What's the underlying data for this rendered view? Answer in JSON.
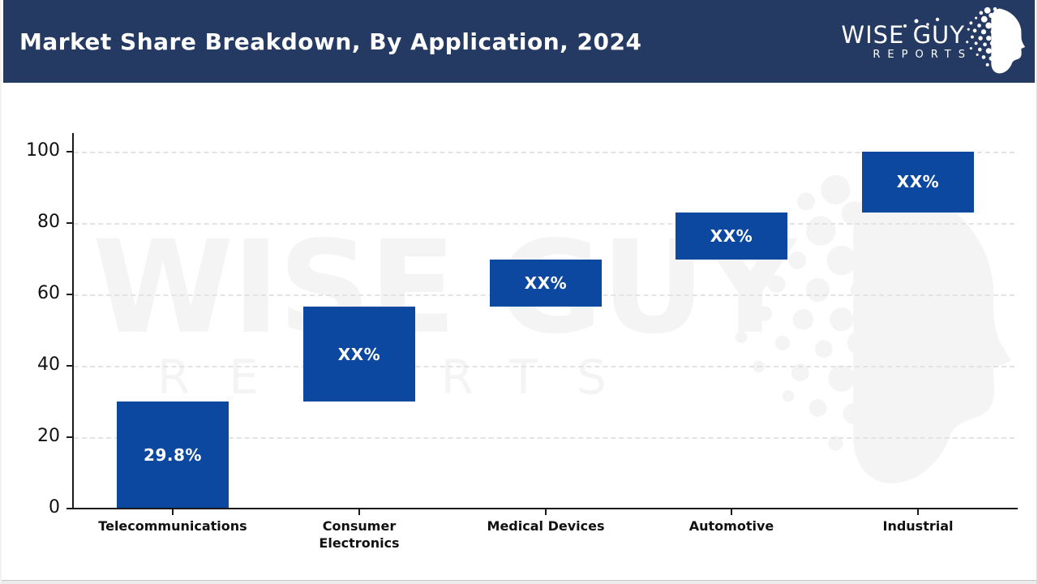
{
  "header": {
    "title": "Market Share Breakdown, By Application, 2024",
    "logo": {
      "wordmark": "WISE GUY",
      "subtext": "REPORTS"
    }
  },
  "watermark": {
    "line1": "WISE GUY",
    "line2": "REPORTS"
  },
  "chart_data": {
    "type": "bar",
    "subtype": "waterfall",
    "title": "Market Share Breakdown, By Application, 2024",
    "categories": [
      "Telecommunications",
      "Consumer\nElectronics",
      "Medical Devices",
      "Automotive",
      "Industrial"
    ],
    "segments": [
      {
        "category": "Telecommunications",
        "start": 0,
        "end": 29.8,
        "label": "29.8%"
      },
      {
        "category": "Consumer Electronics",
        "start": 29.8,
        "end": 56.4,
        "label": "XX%"
      },
      {
        "category": "Medical Devices",
        "start": 56.4,
        "end": 69.6,
        "label": "XX%"
      },
      {
        "category": "Automotive",
        "start": 69.6,
        "end": 82.8,
        "label": "XX%"
      },
      {
        "category": "Industrial",
        "start": 82.8,
        "end": 100,
        "label": "XX%"
      }
    ],
    "yticks": [
      0,
      20,
      40,
      60,
      80,
      100
    ],
    "ylim": [
      0,
      105
    ],
    "grid": "horizontal-dashed",
    "legend": "none",
    "bar_color": "#0C47A0",
    "bar_label_color": "#ffffff",
    "header_color": "#243A63"
  }
}
